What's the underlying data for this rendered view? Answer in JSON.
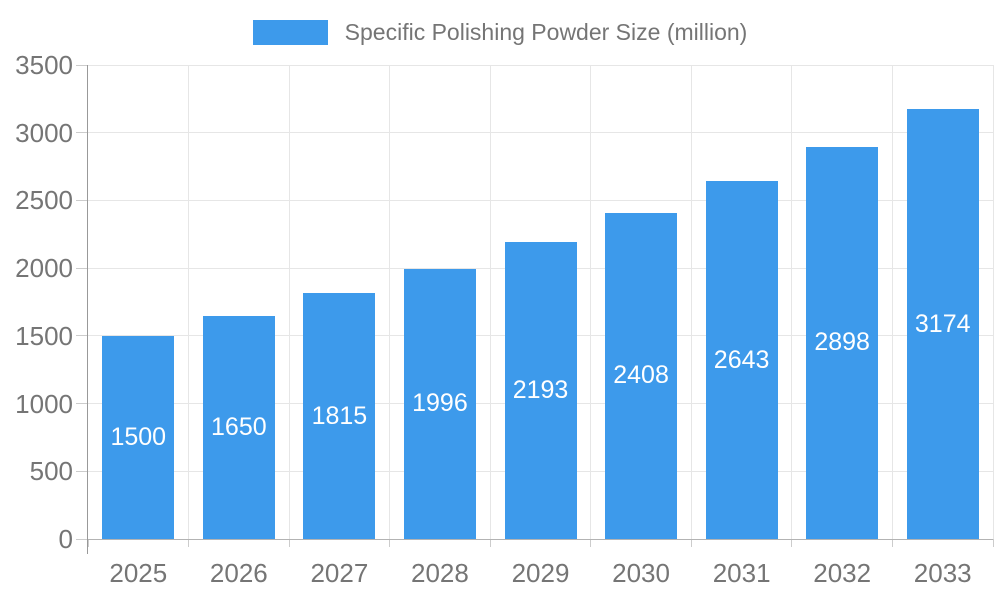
{
  "legend": {
    "label": "Specific Polishing Powder Size (million)"
  },
  "chart_data": {
    "type": "bar",
    "title": "Specific Polishing Powder Size (million)",
    "series_name": "Specific Polishing Powder Size (million)",
    "categories": [
      "2025",
      "2026",
      "2027",
      "2028",
      "2029",
      "2030",
      "2031",
      "2032",
      "2033"
    ],
    "values": [
      1500,
      1650,
      1815,
      1996,
      2193,
      2408,
      2643,
      2898,
      3174
    ],
    "xlabel": "",
    "ylabel": "",
    "ylim": [
      0,
      3500
    ],
    "yticks": [
      0,
      500,
      1000,
      1500,
      2000,
      2500,
      3000,
      3500
    ],
    "grid": true,
    "legend_position": "top",
    "value_labels": "inside-center"
  },
  "colors": {
    "bar": "#3d9aeb",
    "grid_line": "#e6e6e6",
    "axis_line_x": "#b3b3b3",
    "axis_line_y": "#999999",
    "tick": "#cccccc",
    "axis_text": "#757575",
    "legend_text": "#757575",
    "value_text": "#ffffff",
    "background": "#ffffff"
  }
}
